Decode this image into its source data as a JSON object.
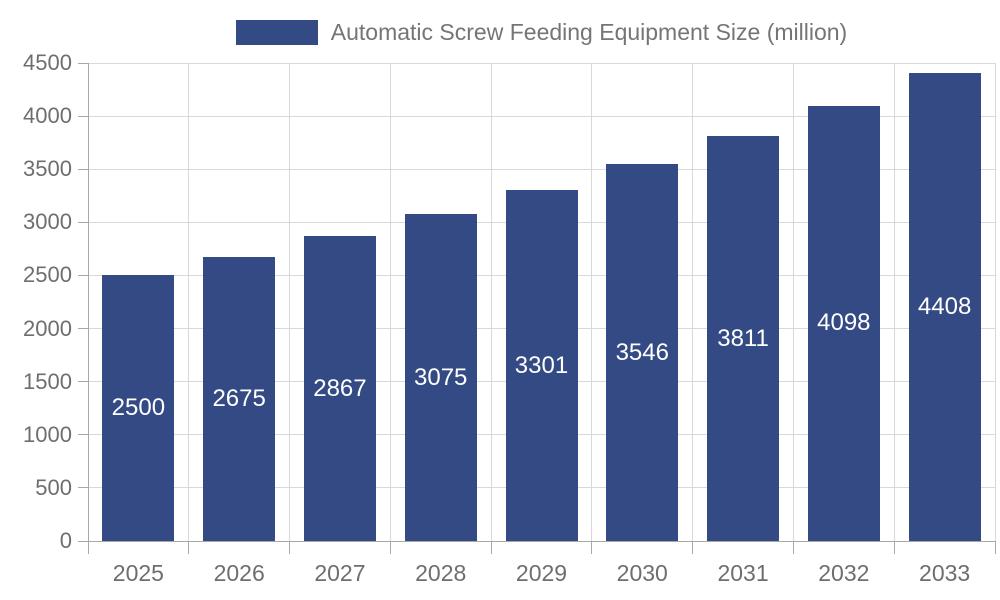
{
  "chart_data": {
    "type": "bar",
    "title": "Automatic Screw Feeding Equipment Size (million)",
    "series_name": "Automatic Screw Feeding Equipment Size (million)",
    "categories": [
      "2025",
      "2026",
      "2027",
      "2028",
      "2029",
      "2030",
      "2031",
      "2032",
      "2033"
    ],
    "values": [
      2500,
      2675,
      2867,
      3075,
      3301,
      3546,
      3811,
      4098,
      4408
    ],
    "xlabel": "",
    "ylabel": "",
    "ylim": [
      0,
      4500
    ],
    "yticks": [
      0,
      500,
      1000,
      1500,
      2000,
      2500,
      3000,
      3500,
      4000,
      4500
    ],
    "grid": true,
    "legend_position": "top-center",
    "value_label_position": "inside-center"
  },
  "colors": {
    "bar": "#344a84",
    "grid": "#d9d9d9",
    "axis": "#a8a8a8",
    "tick_text": "#6e6e6e",
    "legend_text": "#757575",
    "value_label_text": "#ffffff",
    "background": "#ffffff"
  }
}
